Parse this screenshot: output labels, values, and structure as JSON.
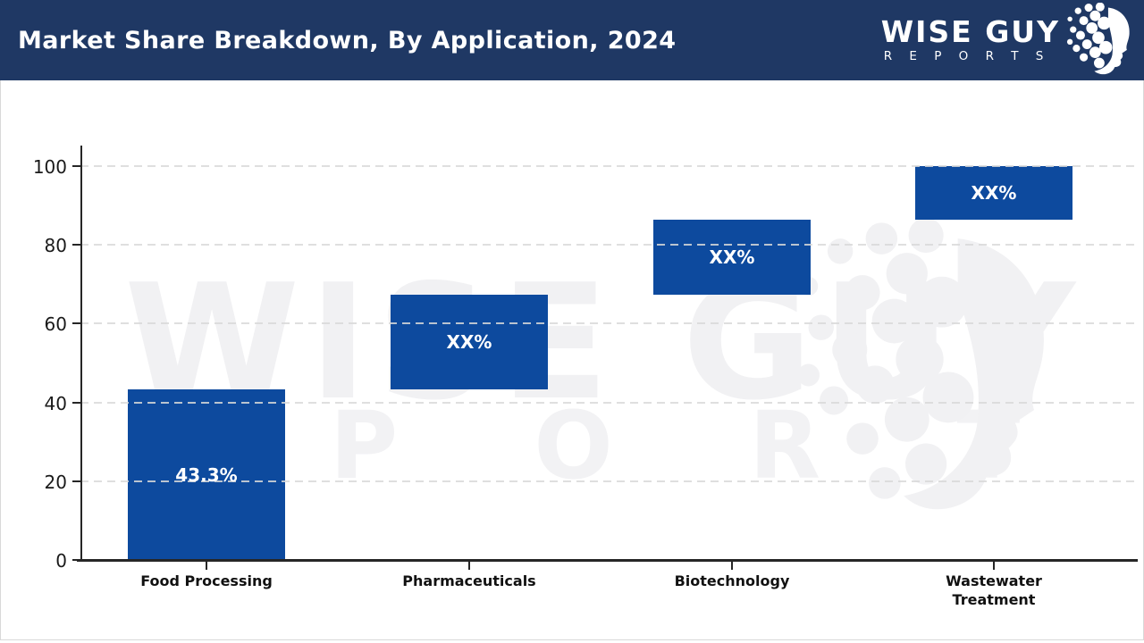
{
  "header": {
    "title": "Market Share Breakdown, By Application, 2024"
  },
  "logo": {
    "primary": "WISE GUY",
    "secondary": "R E P O R T S",
    "head_icon": "dotted-head-profile"
  },
  "watermark": {
    "line1": "WISE GUY",
    "line2": "P O R T S"
  },
  "colors": {
    "header_bg": "#1f3864",
    "bar": "#0d4a9e",
    "bar_label": "#ffffff",
    "axis": "#262626",
    "grid": "#d9d9d9",
    "watermark": "#f1f1f3"
  },
  "chart_data": {
    "type": "bar",
    "subtype": "waterfall",
    "title": "Market Share Breakdown, By Application, 2024",
    "xlabel": "",
    "ylabel": "",
    "ylim": [
      0,
      105
    ],
    "yticks": [
      0,
      20,
      40,
      60,
      80,
      100
    ],
    "grid": "horizontal-dashed",
    "legend": "none",
    "categories": [
      "Food Processing",
      "Pharmaceuticals",
      "Biotechnology",
      "Wastewater Treatment"
    ],
    "series": [
      {
        "name": "Market Share",
        "segments": [
          {
            "category": "Food Processing",
            "start": 0,
            "end": 43.3,
            "value": 43.3,
            "label": "43.3%"
          },
          {
            "category": "Pharmaceuticals",
            "start": 43.3,
            "end": 67.3,
            "value": 24.0,
            "label": "XX%"
          },
          {
            "category": "Biotechnology",
            "start": 67.3,
            "end": 86.4,
            "value": 19.1,
            "label": "XX%"
          },
          {
            "category": "Wastewater Treatment",
            "start": 86.4,
            "end": 100,
            "value": 13.6,
            "label": "XX%"
          }
        ]
      }
    ]
  }
}
